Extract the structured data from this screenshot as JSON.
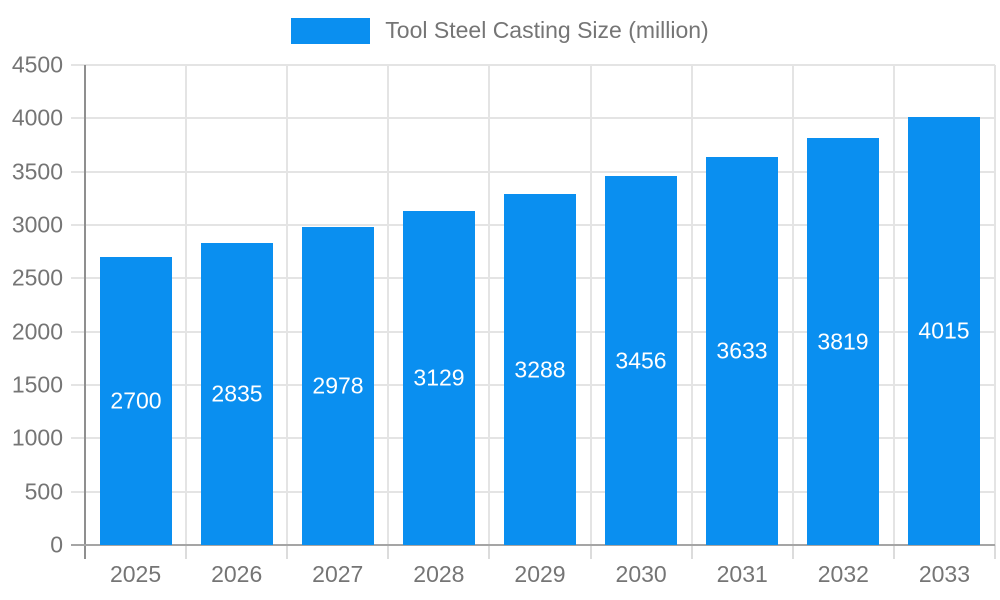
{
  "chart_data": {
    "type": "bar",
    "title": "Tool Steel Casting Size (million)",
    "categories": [
      "2025",
      "2026",
      "2027",
      "2028",
      "2029",
      "2030",
      "2031",
      "2032",
      "2033"
    ],
    "values": [
      2700,
      2835,
      2978,
      3129,
      3288,
      3456,
      3633,
      3819,
      4015
    ],
    "series": [
      {
        "name": "Tool Steel Casting Size (million)",
        "values": [
          2700,
          2835,
          2978,
          3129,
          3288,
          3456,
          3633,
          3819,
          4015
        ]
      }
    ],
    "xlabel": "",
    "ylabel": "",
    "ylim": [
      0,
      4500
    ],
    "ytick_step": 500,
    "yticks": [
      "0",
      "500",
      "1000",
      "1500",
      "2000",
      "2500",
      "3000",
      "3500",
      "4000",
      "4500"
    ],
    "grid": "on",
    "legend_position": "top-center",
    "value_labels": "inside-center-white"
  },
  "colors": {
    "bar": "#0a8ff0",
    "value_label_text": "#ffffff",
    "axis_text": "#757575",
    "legend_text": "#757575",
    "gridline": "#e4e4e4",
    "y_axis_line": "#8f8f8f",
    "x_axis_line": "#a5a5a5",
    "background": "#ffffff"
  }
}
